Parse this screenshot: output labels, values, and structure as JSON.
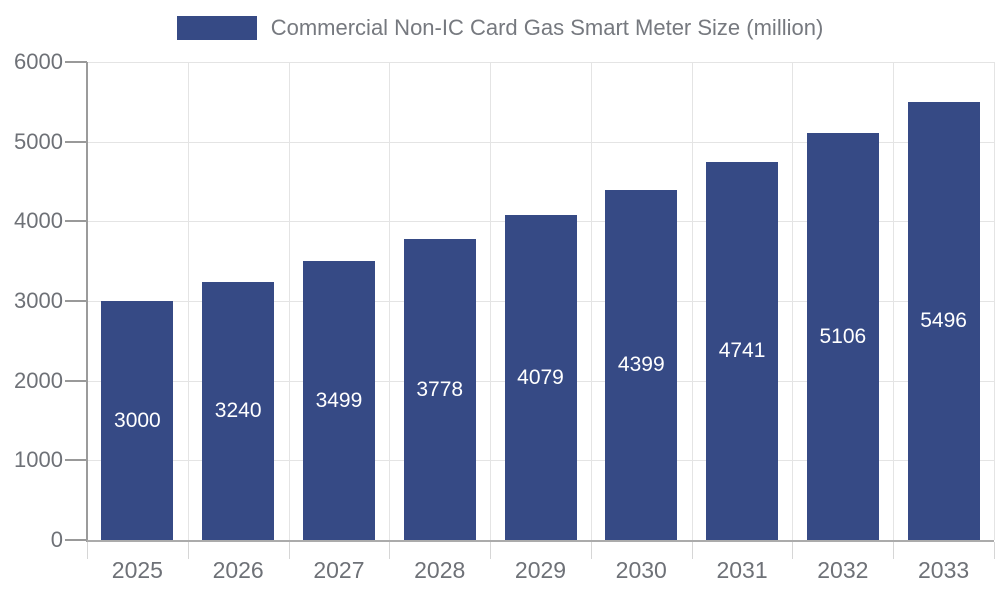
{
  "legend": {
    "label": "Commercial Non-IC Card Gas Smart Meter Size (million)",
    "swatch_color": "#364a85"
  },
  "chart_data": {
    "type": "bar",
    "title": "Commercial Non-IC Card Gas Smart Meter Size (million)",
    "categories": [
      "2025",
      "2026",
      "2027",
      "2028",
      "2029",
      "2030",
      "2031",
      "2032",
      "2033"
    ],
    "values": [
      3000,
      3240,
      3499,
      3778,
      4079,
      4399,
      4741,
      5106,
      5496
    ],
    "xlabel": "",
    "ylabel": "",
    "ylim": [
      0,
      6000
    ],
    "yticks": [
      0,
      1000,
      2000,
      3000,
      4000,
      5000,
      6000
    ],
    "grid": true,
    "legend_position": "top",
    "bar_color": "#364a85",
    "bar_label_color": "#ffffff",
    "axis_label_color": "#6e7177",
    "grid_color": "#e4e4e4",
    "axis_line_color": "#9b9b9b",
    "tick_color": "#d6d6d6"
  }
}
